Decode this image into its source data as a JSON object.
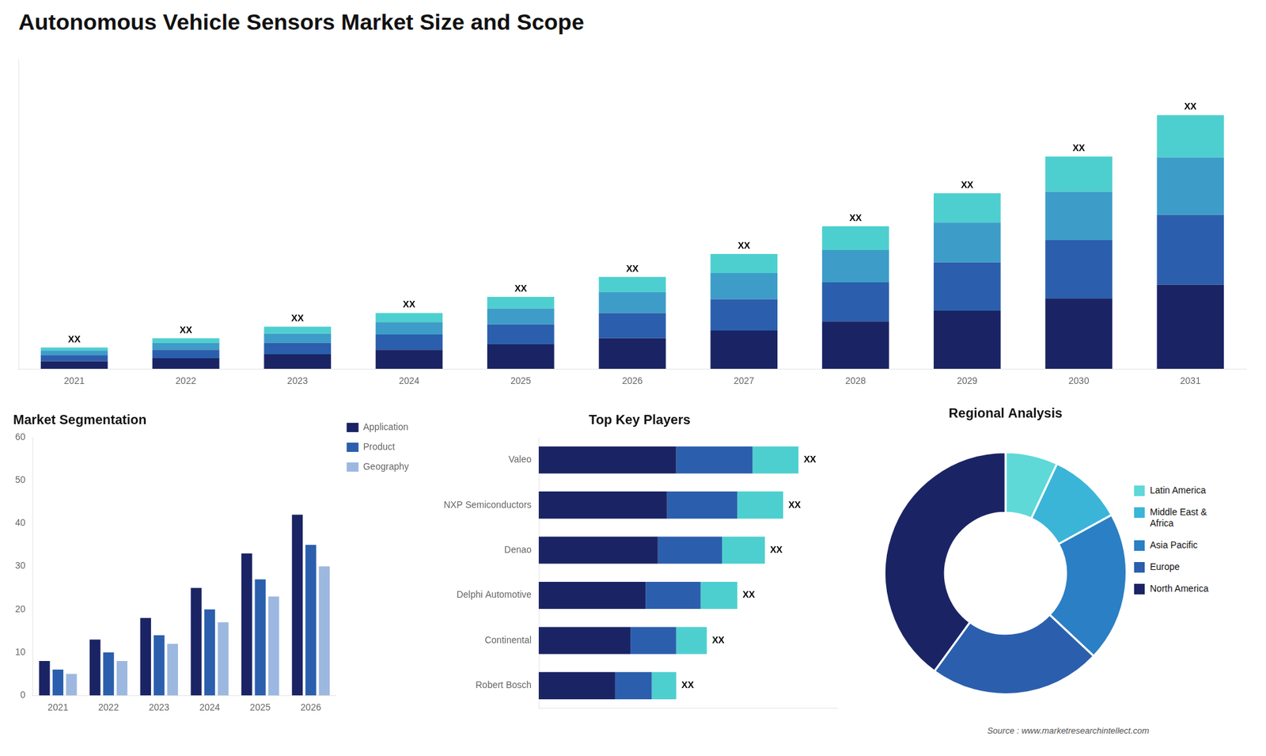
{
  "chart_data": [
    {
      "type": "bar",
      "title": "Autonomous Vehicle Sensors Market Size and Scope",
      "categories": [
        "2021",
        "2022",
        "2023",
        "2024",
        "2025",
        "2026",
        "2027",
        "2028",
        "2029",
        "2030",
        "2031"
      ],
      "series": [
        {
          "color": "#1a2464",
          "values": [
            1.0,
            1.4,
            1.9,
            2.5,
            3.2,
            4.0,
            5.0,
            6.2,
            7.6,
            9.2,
            11.0
          ]
        },
        {
          "color": "#2b5fad",
          "values": [
            0.8,
            1.1,
            1.5,
            2.0,
            2.6,
            3.3,
            4.1,
            5.1,
            6.3,
            7.6,
            9.1
          ]
        },
        {
          "color": "#3d9dc8",
          "values": [
            0.6,
            0.9,
            1.2,
            1.6,
            2.1,
            2.7,
            3.4,
            4.2,
            5.2,
            6.3,
            7.5
          ]
        },
        {
          "color": "#4ecfcf",
          "values": [
            0.4,
            0.6,
            0.9,
            1.2,
            1.5,
            2.0,
            2.5,
            3.1,
            3.8,
            4.6,
            5.5
          ]
        }
      ],
      "value_labels": [
        "XX",
        "XX",
        "XX",
        "XX",
        "XX",
        "XX",
        "XX",
        "XX",
        "XX",
        "XX",
        "XX"
      ],
      "stacked": true,
      "ylim": [
        0,
        40.382
      ],
      "tick_labels": "x",
      "grid": false
    },
    {
      "type": "bar",
      "title": "Market Segmentation",
      "categories": [
        "2021",
        "2022",
        "2023",
        "2024",
        "2025",
        "2026"
      ],
      "series": [
        {
          "name": "Application",
          "color": "#1a2464",
          "values": [
            8,
            13,
            18,
            25,
            33,
            42
          ]
        },
        {
          "name": "Product",
          "color": "#2b5fad",
          "values": [
            6,
            10,
            14,
            20,
            27,
            35
          ]
        },
        {
          "name": "Geography",
          "color": "#9db8e0",
          "values": [
            5,
            8,
            12,
            17,
            23,
            30
          ]
        }
      ],
      "ylim": [
        0,
        60
      ],
      "yticks": [
        0,
        10,
        20,
        30,
        40,
        50,
        60
      ],
      "legend": "right",
      "grid": false
    },
    {
      "type": "bar",
      "title": "Top Key Players",
      "orientation": "horizontal",
      "stacked": true,
      "categories": [
        "Valeo",
        "NXP Semiconductors",
        "Denao",
        "Delphi Automotive",
        "Continental",
        "Robert Bosch"
      ],
      "series": [
        {
          "color": "#1a2464",
          "values": [
            4.5,
            4.2,
            3.9,
            3.5,
            3.0,
            2.5
          ]
        },
        {
          "color": "#2b5fad",
          "values": [
            2.5,
            2.3,
            2.1,
            1.8,
            1.5,
            1.2
          ]
        },
        {
          "color": "#4ecfcf",
          "values": [
            1.5,
            1.5,
            1.4,
            1.2,
            1.0,
            0.8
          ]
        }
      ],
      "value_labels": [
        "XX",
        "XX",
        "XX",
        "XX",
        "XX",
        "XX"
      ],
      "xlim": [
        0,
        9.775
      ],
      "tick_labels": "y",
      "grid": false
    },
    {
      "type": "doughnut",
      "title": "Regional Analysis",
      "categories": [
        "Latin America",
        "Middle East &\nAfrica",
        "Asia Pacific",
        "Europe",
        "North America"
      ],
      "values": [
        7,
        10,
        20,
        23,
        40
      ],
      "colors": [
        "#5fd8d8",
        "#3ab5d8",
        "#2b7fc4",
        "#2b5fad",
        "#1a2464"
      ],
      "legend": "right",
      "annotations": [
        "Source : www.marketresearchintellect.com"
      ]
    }
  ]
}
